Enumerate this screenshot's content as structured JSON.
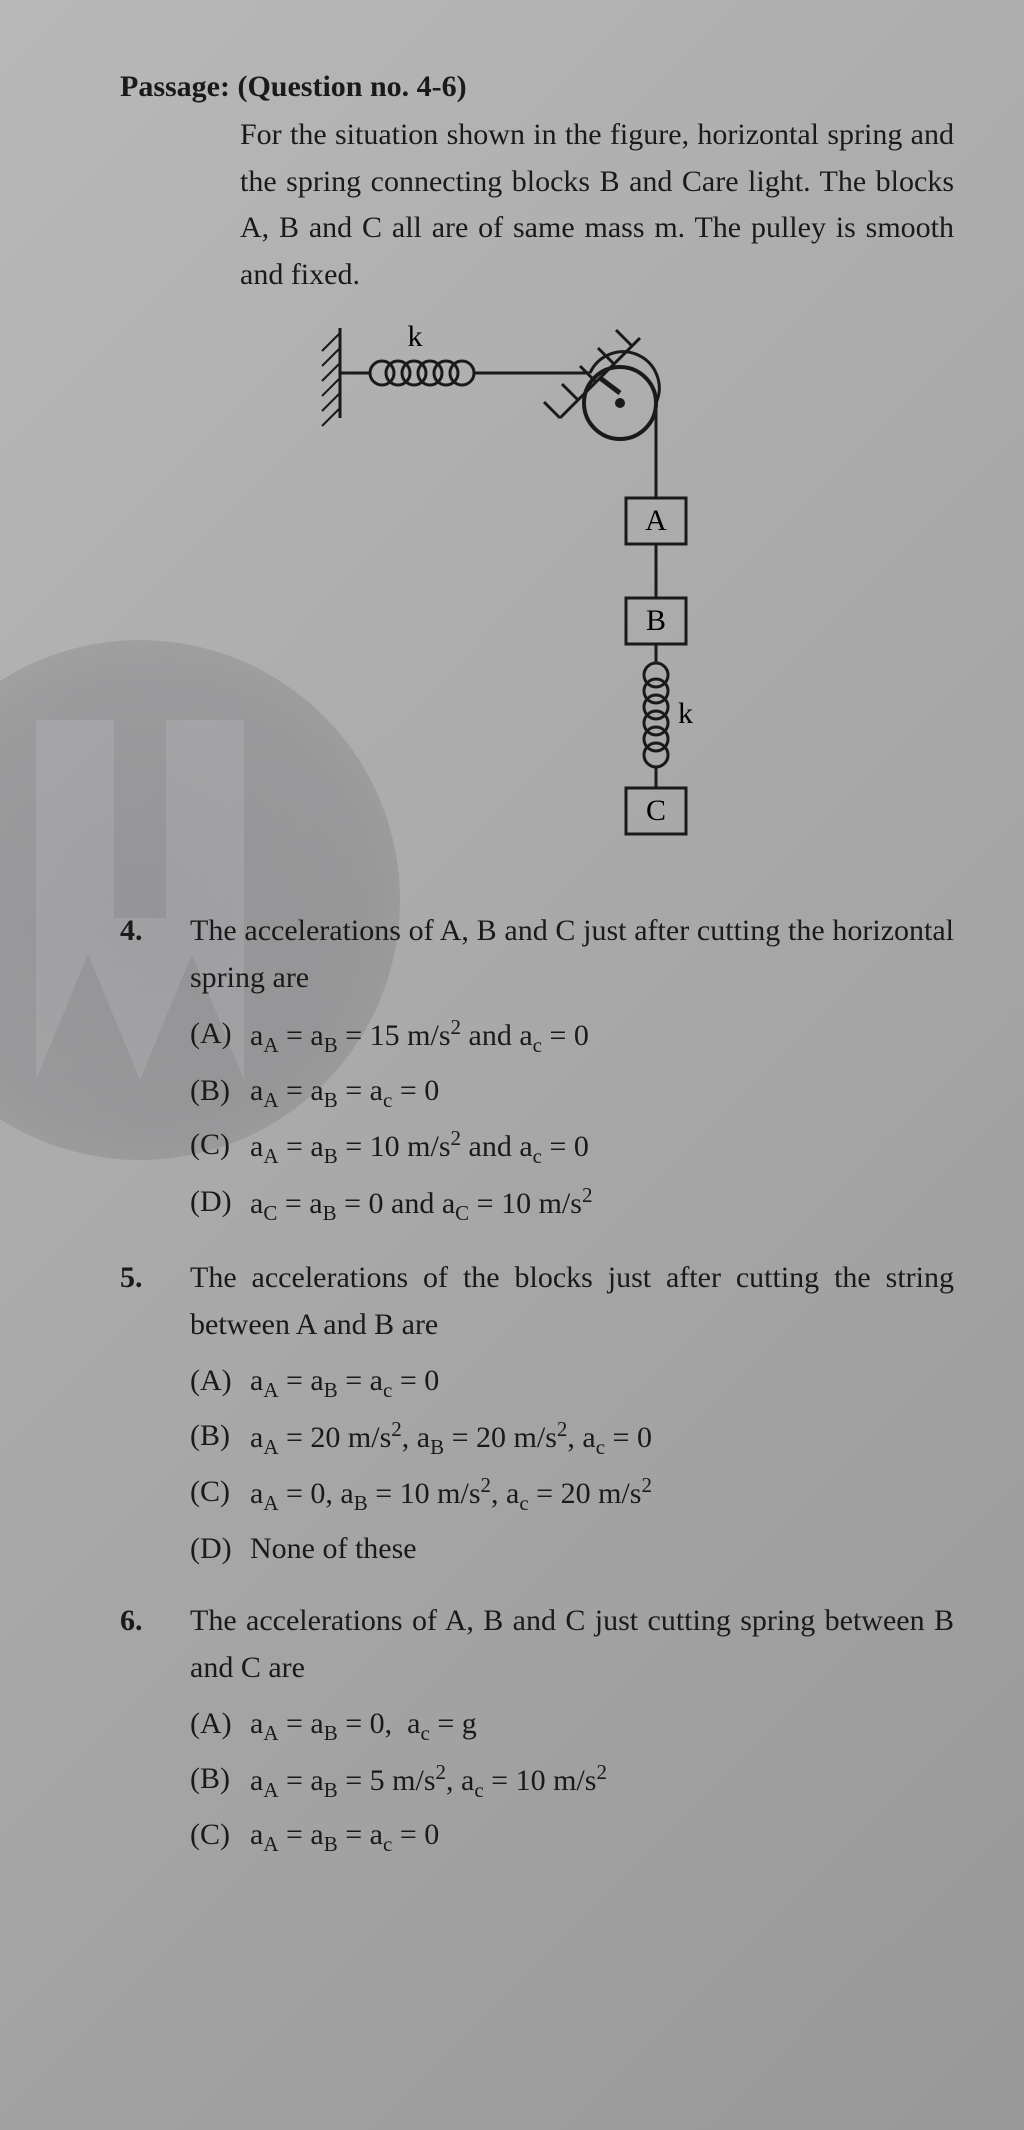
{
  "passage": {
    "title": "Passage: (Question no. 4-6)",
    "body": "For the situation shown in the figure, horizontal spring and the spring connecting blocks B and Care light. The blocks A, B and C all are of same mass m. The pulley is smooth and fixed."
  },
  "diagram": {
    "spring_label_top": "k",
    "spring_label_side": "k",
    "block_labels": {
      "A": "A",
      "B": "B",
      "C": "C"
    },
    "colors": {
      "stroke": "#1a1a1a",
      "fill_block": "none",
      "hatch": "#1a1a1a"
    },
    "stroke_width": 2.5
  },
  "questions": [
    {
      "num": "4.",
      "text": "The accelerations of A, B and C just after cutting the horizontal spring are",
      "options": [
        {
          "label": "(A)",
          "html": "a<sub>A</sub> = a<sub>B</sub> = 15 m/s<sup>2</sup> and a<sub>c</sub> = 0"
        },
        {
          "label": "(B)",
          "html": "a<sub>A</sub> = a<sub>B</sub> = a<sub>c</sub> = 0"
        },
        {
          "label": "(C)",
          "html": "a<sub>A</sub> = a<sub>B</sub> = 10 m/s<sup>2</sup> and a<sub>c</sub> = 0"
        },
        {
          "label": "(D)",
          "html": "a<sub>C</sub> = a<sub>B</sub> = 0 and a<sub>C</sub> = 10 m/s<sup>2</sup>"
        }
      ]
    },
    {
      "num": "5.",
      "text": "The accelerations of the blocks just after cutting the string between A and B are",
      "options": [
        {
          "label": "(A)",
          "html": "a<sub>A</sub> = a<sub>B</sub> = a<sub>c</sub> = 0"
        },
        {
          "label": "(B)",
          "html": "a<sub>A</sub> = 20 m/s<sup>2</sup>, a<sub>B</sub> = 20 m/s<sup>2</sup>, a<sub>c</sub> = 0"
        },
        {
          "label": "(C)",
          "html": "a<sub>A</sub> = 0, a<sub>B</sub> = 10 m/s<sup>2</sup>, a<sub>c</sub> = 20 m/s<sup>2</sup>"
        },
        {
          "label": "(D)",
          "html": "None of these"
        }
      ]
    },
    {
      "num": "6.",
      "text": "The accelerations of A, B and C just cutting spring between B and C are",
      "options": [
        {
          "label": "(A)",
          "html": "a<sub>A</sub> = a<sub>B</sub> = 0,&nbsp; a<sub>c</sub> = g"
        },
        {
          "label": "(B)",
          "html": "a<sub>A</sub> = a<sub>B</sub> = 5 m/s<sup>2</sup>, a<sub>c</sub> = 10 m/s<sup>2</sup>"
        },
        {
          "label": "(C)",
          "html": "a<sub>A</sub> = a<sub>B</sub> = a<sub>c</sub> = 0"
        }
      ]
    }
  ]
}
